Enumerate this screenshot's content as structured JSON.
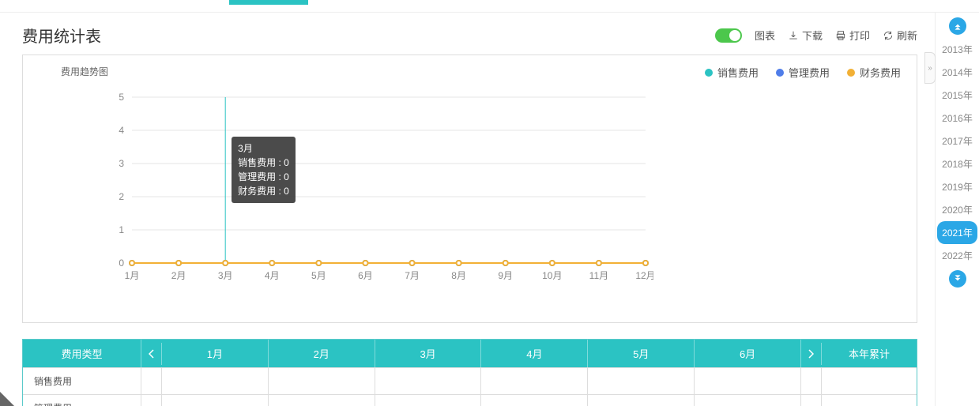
{
  "header": {
    "title": "费用统计表",
    "toggle_label": "图表",
    "download": "下载",
    "print": "打印",
    "refresh": "刷新"
  },
  "chart": {
    "title": "费用趋势图",
    "type": "line",
    "legend": [
      {
        "label": "销售费用",
        "color": "#2bc3c3"
      },
      {
        "label": "管理费用",
        "color": "#4f7de9"
      },
      {
        "label": "财务费用",
        "color": "#f2b035"
      }
    ],
    "x_labels": [
      "1月",
      "2月",
      "3月",
      "4月",
      "5月",
      "6月",
      "7月",
      "8月",
      "9月",
      "10月",
      "11月",
      "12月"
    ],
    "series": [
      {
        "name": "销售费用",
        "color": "#2bc3c3",
        "values": [
          0,
          0,
          0,
          0,
          0,
          0,
          0,
          0,
          0,
          0,
          0,
          0
        ]
      },
      {
        "name": "管理费用",
        "color": "#4f7de9",
        "values": [
          0,
          0,
          0,
          0,
          0,
          0,
          0,
          0,
          0,
          0,
          0,
          0
        ]
      },
      {
        "name": "财务费用",
        "color": "#f2b035",
        "values": [
          0,
          0,
          0,
          0,
          0,
          0,
          0,
          0,
          0,
          0,
          0,
          0
        ]
      }
    ],
    "ylim": [
      0,
      5
    ],
    "ytick_step": 1,
    "grid_color": "#e6e6e6",
    "axis_color": "#888888",
    "background_color": "#ffffff",
    "marker_radius": 3,
    "line_width": 2,
    "hover_index": 2,
    "hover_line_color": "#2bc3c3",
    "tooltip": {
      "title": "3月",
      "rows": [
        {
          "label": "销售费用",
          "value": "0"
        },
        {
          "label": "管理费用",
          "value": "0"
        },
        {
          "label": "财务费用",
          "value": "0"
        }
      ]
    }
  },
  "table": {
    "type_header": "费用类型",
    "months": [
      "1月",
      "2月",
      "3月",
      "4月",
      "5月",
      "6月"
    ],
    "total_header": "本年累计",
    "rows": [
      {
        "type": "销售费用",
        "cells": [
          "",
          "",
          "",
          "",
          "",
          ""
        ],
        "total": ""
      },
      {
        "type": "管理费用",
        "cells": [
          "",
          "",
          "",
          "",
          "",
          ""
        ],
        "total": ""
      }
    ],
    "header_bg": "#2bc3c3",
    "border_color": "#5bcaca"
  },
  "years": {
    "list": [
      "2013年",
      "2014年",
      "2015年",
      "2016年",
      "2017年",
      "2018年",
      "2019年",
      "2020年",
      "2021年",
      "2022年"
    ],
    "active": "2021年"
  }
}
